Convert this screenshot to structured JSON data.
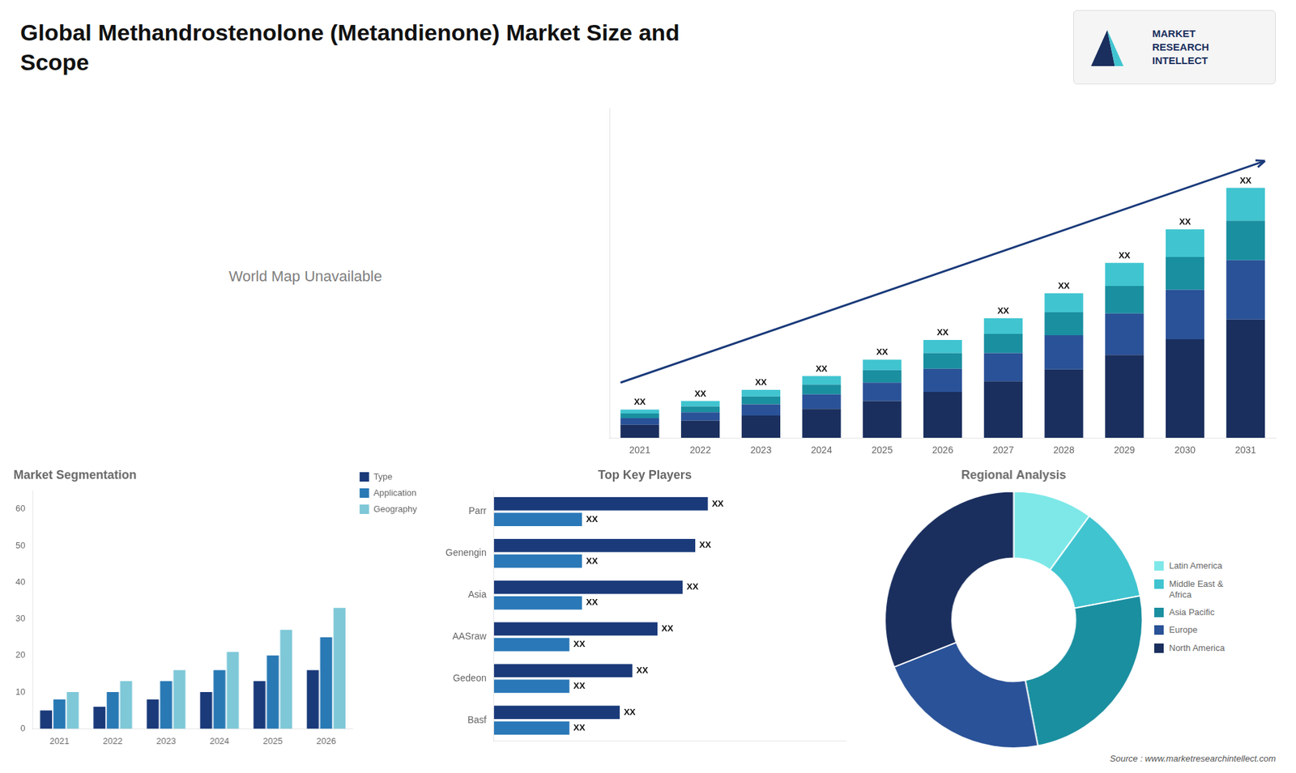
{
  "title": "Global Methandrostenolone (Metandienone) Market Size and\nScope",
  "annotations": [
    "World Map Unavailable",
    "MARKET",
    "RESEARCH",
    "INTELLECT",
    "Source : www.marketresearchintellect.com"
  ],
  "chart_data": [
    {
      "type": "bar",
      "stacked": true,
      "categories": [
        "2021",
        "2022",
        "2023",
        "2024",
        "2025",
        "2026",
        "2027",
        "2028",
        "2029",
        "2030",
        "2031"
      ],
      "series": [
        {
          "color": "#1a2f5e",
          "values": [
            1.0,
            1.3,
            1.7,
            2.2,
            2.8,
            3.5,
            4.3,
            5.2,
            6.3,
            7.5,
            9.0
          ]
        },
        {
          "color": "#2a5298",
          "values": [
            0.5,
            0.65,
            0.85,
            1.1,
            1.4,
            1.75,
            2.15,
            2.6,
            3.15,
            3.75,
            4.5
          ]
        },
        {
          "color": "#1a8fa0",
          "values": [
            0.35,
            0.45,
            0.6,
            0.75,
            0.95,
            1.2,
            1.45,
            1.75,
            2.1,
            2.5,
            3.0
          ]
        },
        {
          "color": "#40c4d0",
          "values": [
            0.3,
            0.4,
            0.5,
            0.65,
            0.8,
            1.0,
            1.2,
            1.45,
            1.75,
            2.1,
            2.5
          ],
          "value_labels": [
            "XX",
            "XX",
            "XX",
            "XX",
            "XX",
            "XX",
            "XX",
            "XX",
            "XX",
            "XX",
            "XX"
          ]
        }
      ],
      "ylim": [
        0,
        25.08
      ],
      "tick_labels": "x",
      "grid": false,
      "data_labels": true
    },
    {
      "type": "bar",
      "title": "Market Segmentation",
      "categories": [
        "2021",
        "2022",
        "2023",
        "2024",
        "2025",
        "2026"
      ],
      "series": [
        {
          "name": "Type",
          "color": "#1a3a7a",
          "values": [
            5,
            6,
            8,
            10,
            13,
            16
          ]
        },
        {
          "name": "Application",
          "color": "#2979b5",
          "values": [
            8,
            10,
            13,
            16,
            20,
            25
          ]
        },
        {
          "name": "Geography",
          "color": "#7ec8d8",
          "values": [
            10,
            13,
            16,
            21,
            27,
            33
          ]
        }
      ],
      "ylim": [
        0,
        65
      ],
      "yticks": [
        0,
        10,
        20,
        30,
        40,
        50,
        60
      ],
      "grid": false,
      "legend": "right"
    },
    {
      "type": "bar",
      "orientation": "horizontal",
      "title": "Top Key Players",
      "categories": [
        "Parr",
        "Genengin",
        "Asia",
        "AASraw",
        "Gedeon",
        "Basf"
      ],
      "series": [
        {
          "color": "#1a3a7a",
          "values": [
            8.5,
            8.0,
            7.5,
            6.5,
            5.5,
            5.0
          ],
          "value_labels": [
            "XX",
            "XX",
            "XX",
            "XX",
            "XX",
            "XX"
          ]
        },
        {
          "color": "#2a78b8",
          "values": [
            3.5,
            3.5,
            3.5,
            3.0,
            3.0,
            3.0
          ],
          "value_labels": [
            "XX",
            "XX",
            "XX",
            "XX",
            "XX",
            "XX"
          ]
        }
      ],
      "xlim": [
        0,
        14
      ],
      "tick_labels": "y",
      "grid": false,
      "data_labels": true
    },
    {
      "type": "doughnut",
      "title": "Regional Analysis",
      "categories": [
        "Latin America",
        "Middle East &\nAfrica",
        "Asia Pacific",
        "Europe",
        "North America"
      ],
      "values": [
        10,
        12,
        25,
        22,
        31
      ],
      "colors": [
        "#7ee8e8",
        "#40c4d0",
        "#1a8fa0",
        "#2a5298",
        "#1a2f5e"
      ],
      "legend": "right"
    }
  ]
}
